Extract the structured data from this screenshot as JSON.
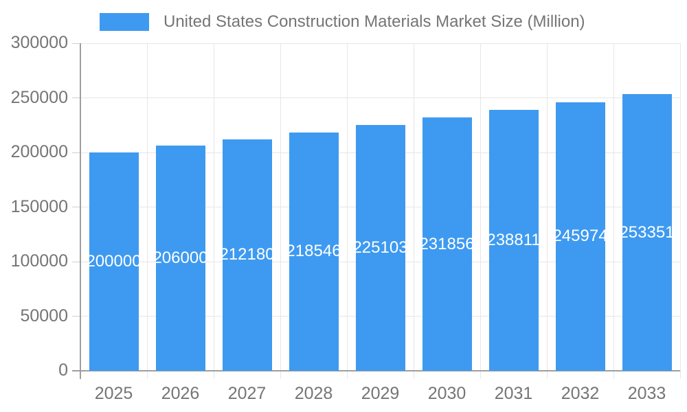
{
  "chart_data": {
    "type": "bar",
    "title": "United States Construction Materials Market Size (Million)",
    "xlabel": "",
    "ylabel": "",
    "categories": [
      "2025",
      "2026",
      "2027",
      "2028",
      "2029",
      "2030",
      "2031",
      "2032",
      "2033"
    ],
    "values": [
      200000,
      206000,
      212180,
      218546,
      225103,
      231856,
      238811,
      245974,
      253351
    ],
    "bar_labels": [
      "200000",
      "206000",
      "212180",
      "218546",
      "225103",
      "231856",
      "238811",
      "245974",
      "253351"
    ],
    "ylim": [
      0,
      300000
    ],
    "yticks": [
      0,
      50000,
      100000,
      150000,
      200000,
      250000,
      300000
    ],
    "grid": true,
    "legend_position": "top",
    "colors": {
      "bar": "#3e9af0",
      "grid": "#e6e6e6",
      "tick": "#cfcfcf",
      "axis": "#9e9e9e",
      "text": "#757575",
      "bar_label": "#ffffff",
      "background": "#ffffff"
    }
  }
}
